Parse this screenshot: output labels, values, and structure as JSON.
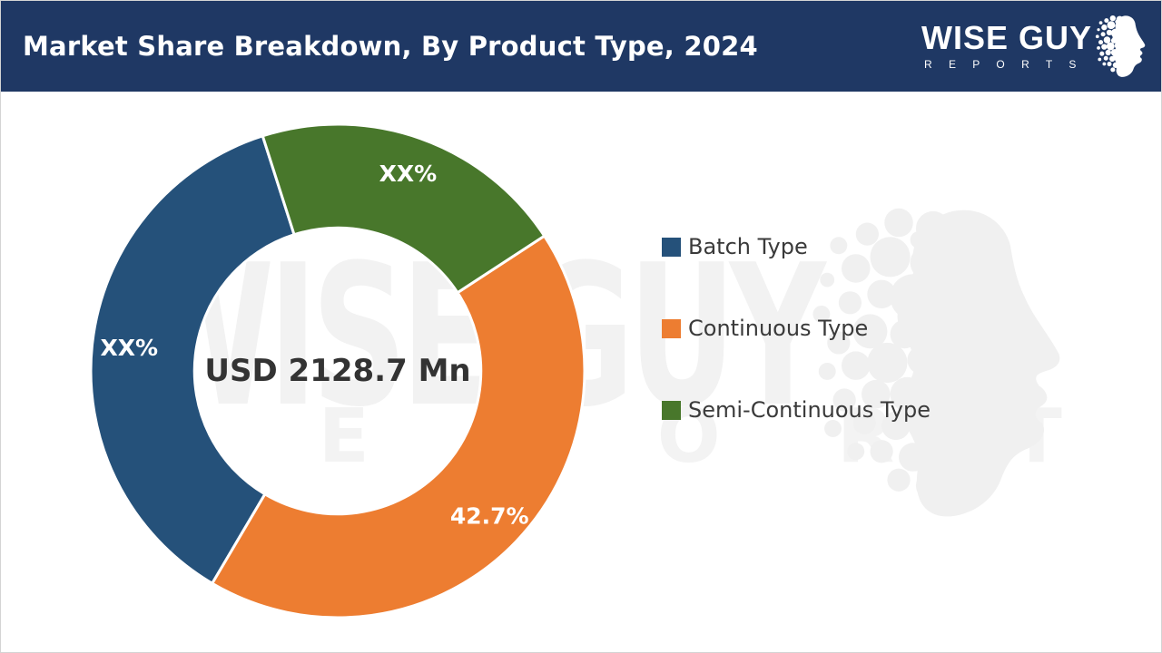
{
  "header": {
    "title": "Market Share Breakdown, By Product Type, 2024",
    "logo": {
      "wordmark": "WISE GUY",
      "subtext": "R E P O R T S"
    }
  },
  "watermark": {
    "wordmark": "WISE GUY",
    "subtext": "R E P O R T S"
  },
  "chart_data": {
    "type": "pie",
    "subtype": "donut",
    "title": "Market Share Breakdown, By Product Type, 2024",
    "center_label": "USD 2128.7 Mn",
    "start_angle_deg": 107.7,
    "counterclockwise": true,
    "inner_radius_ratio": 0.58,
    "label_distance_ratio": 0.85,
    "legend_position": "right",
    "slices": [
      {
        "name": "Batch Type",
        "value_pct": 36.6,
        "display_label": "XX%",
        "color": "#25517A"
      },
      {
        "name": "Continuous Type",
        "value_pct": 42.7,
        "display_label": "42.7%",
        "color": "#ED7D31"
      },
      {
        "name": "Semi-Continuous Type",
        "value_pct": 20.7,
        "display_label": "XX%",
        "color": "#48772B"
      }
    ]
  },
  "colors": {
    "header_bg": "#1F3864",
    "title_text": "#FFFFFF",
    "center_text": "#333333",
    "legend_text": "#3A3A3A",
    "slice_gap": "#FFFFFF",
    "watermark": "#F2F2F2"
  }
}
